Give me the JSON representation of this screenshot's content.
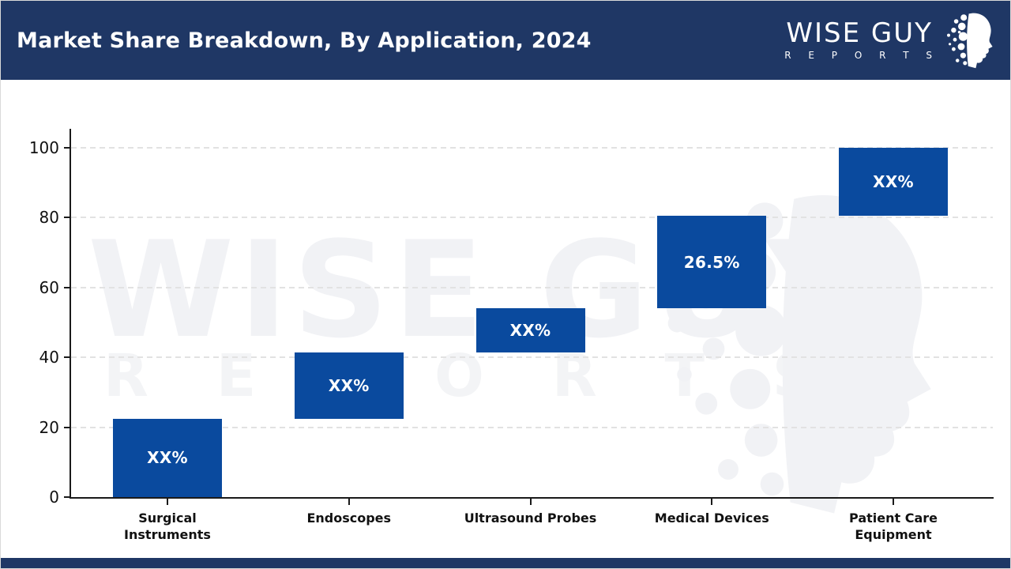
{
  "header": {
    "title": "Market Share Breakdown, By Application, 2024"
  },
  "logo": {
    "name_top": "WISE GUY",
    "name_bottom": "R E P O R T S"
  },
  "watermark": {
    "top": "WISE GUY",
    "bottom": "R E P O R T S"
  },
  "chart_data": {
    "type": "bar",
    "subtype": "floating-waterfall",
    "title": "Market Share Breakdown, By Application, 2024",
    "categories": [
      "Surgical Instruments",
      "Endoscopes",
      "Ultrasound Probes",
      "Medical Devices",
      "Patient Care Equipment"
    ],
    "category_lines": [
      [
        "Surgical",
        "Instruments"
      ],
      [
        "Endoscopes"
      ],
      [
        "Ultrasound Probes"
      ],
      [
        "Medical Devices"
      ],
      [
        "Patient Care",
        "Equipment"
      ]
    ],
    "series": [
      {
        "name": "Market share (%)",
        "segments": [
          {
            "category": "Surgical Instruments",
            "start": 0,
            "end": 22.5,
            "label": "XX%"
          },
          {
            "category": "Endoscopes",
            "start": 22.5,
            "end": 41.5,
            "label": "XX%"
          },
          {
            "category": "Ultrasound Probes",
            "start": 41.5,
            "end": 54,
            "label": "XX%"
          },
          {
            "category": "Medical Devices",
            "start": 54,
            "end": 80.5,
            "label": "26.5%"
          },
          {
            "category": "Patient Care Equipment",
            "start": 80.5,
            "end": 100,
            "label": "XX%"
          }
        ]
      }
    ],
    "ylim": [
      0,
      100
    ],
    "yticks": [
      0,
      20,
      40,
      60,
      80,
      100
    ],
    "grid": "horizontal-dashed",
    "legend": "none",
    "bar_color": "#0A4A9E",
    "bar_label_color": "#ffffff"
  },
  "colors": {
    "header_bg": "#1F3765",
    "footer_bg": "#1F3765",
    "bar": "#0A4A9E",
    "watermark": "#F1F2F5",
    "gridline": "#E2E2E2",
    "axis": "#1A1A1A"
  }
}
